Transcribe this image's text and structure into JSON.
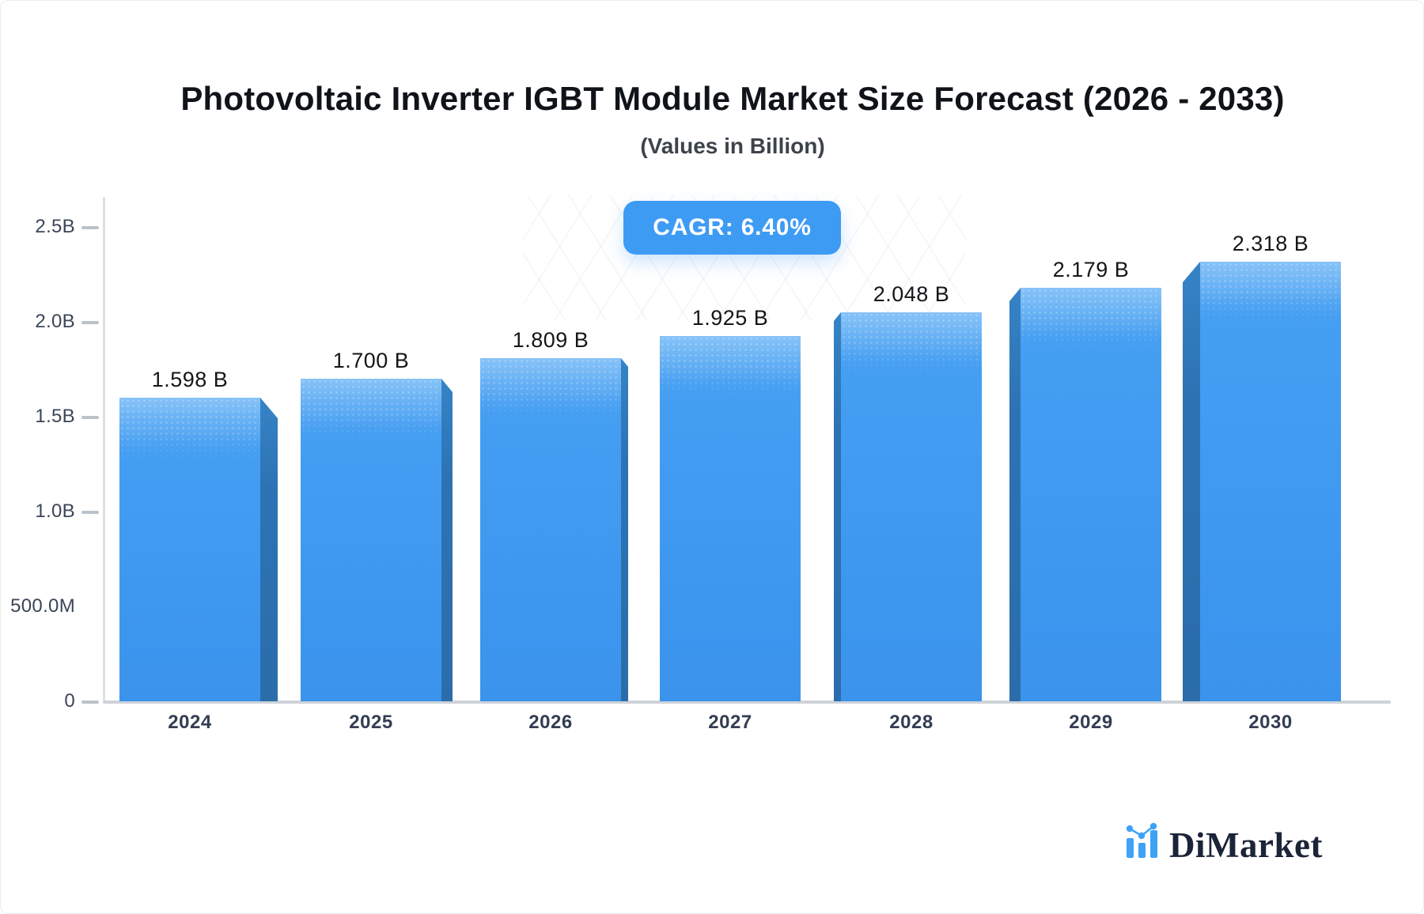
{
  "header": {
    "title": "Photovoltaic Inverter IGBT Module Market Size Forecast (2026 - 2033)",
    "subtitle": "(Values in Billion)"
  },
  "badge": {
    "label": "CAGR: 6.40%"
  },
  "chart_data": {
    "type": "bar",
    "title": "Photovoltaic Inverter IGBT Module Market Size Forecast (2026 - 2033)",
    "subtitle": "(Values in Billion)",
    "cagr_label": "CAGR: 6.40%",
    "categories": [
      "2024",
      "2025",
      "2026",
      "2027",
      "2028",
      "2029",
      "2030"
    ],
    "values": [
      1.598,
      1.7,
      1.809,
      1.925,
      2.048,
      2.179,
      2.318
    ],
    "value_labels": [
      "1.598 B",
      "1.700 B",
      "1.809 B",
      "1.925 B",
      "2.048 B",
      "2.179 B",
      "2.318 B"
    ],
    "ylim": [
      0,
      2.5
    ],
    "yticks": [
      {
        "label": "0",
        "value": 0,
        "dash": true
      },
      {
        "label": "500.0M",
        "value": 0.5,
        "dash": false
      },
      {
        "label": "1.0B",
        "value": 1.0,
        "dash": true
      },
      {
        "label": "1.5B",
        "value": 1.5,
        "dash": true
      },
      {
        "label": "2.0B",
        "value": 2.0,
        "dash": true
      },
      {
        "label": "2.5B",
        "value": 2.5,
        "dash": true
      }
    ],
    "grid": false,
    "legend": false,
    "bar_color": "#3f9df2",
    "bar_side_color": "#2e74b5"
  },
  "logo": {
    "text": "DiMarket"
  },
  "colors": {
    "accent_blue": "#3e9bf4",
    "axis_gray": "#cfd3d8",
    "text_dark": "#141619",
    "text_slate": "#3b4557"
  }
}
